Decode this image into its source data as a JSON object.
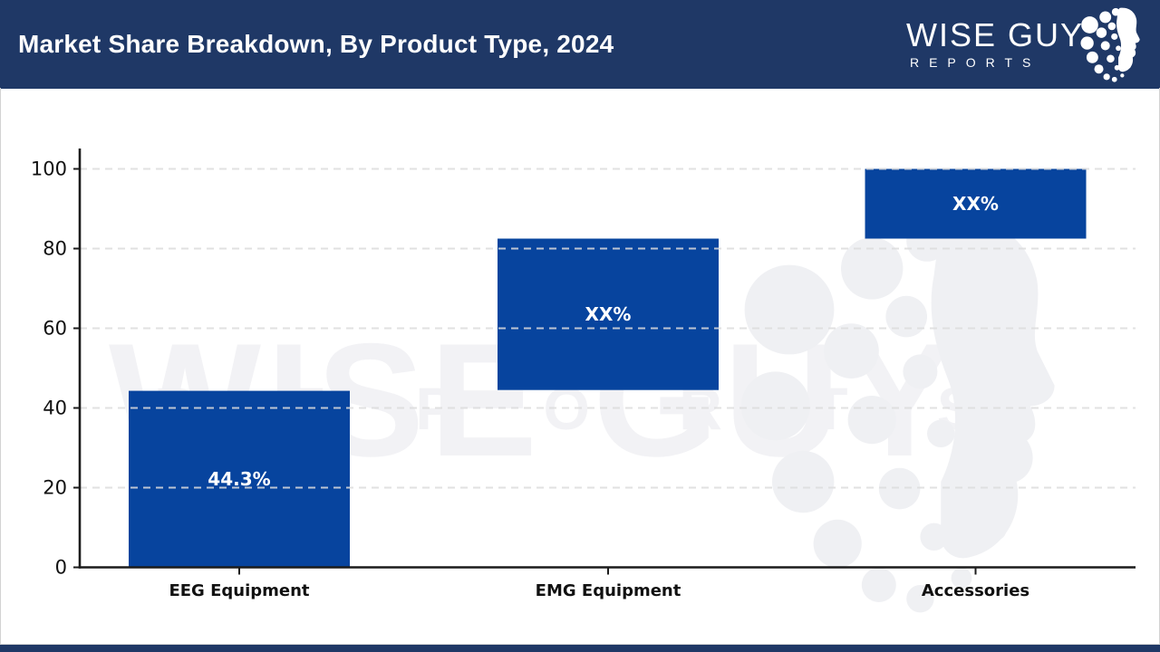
{
  "header": {
    "title": "Market Share Breakdown, By Product Type, 2024",
    "brand": {
      "name": "WISE GUY",
      "sub": "REPORTS"
    }
  },
  "watermark": {
    "line1": "WISE GUY",
    "line2": "R E P O R T S"
  },
  "colors": {
    "header_bg": "#1f3866",
    "footer_bg": "#1f3866",
    "bar": "#07449e",
    "bar_label": "#ffffff",
    "axis": "#1c1c1c",
    "grid": "#dcdcdc",
    "tick_label": "#111111",
    "watermark": "#f2f2f5"
  },
  "chart_data": {
    "type": "bar",
    "subtype": "waterfall",
    "title": "Market Share Breakdown, By Product Type, 2024",
    "categories": [
      "EEG Equipment",
      "EMG Equipment",
      "Accessories"
    ],
    "bars": [
      {
        "category": "EEG Equipment",
        "label": "44.3%",
        "start": 0,
        "end": 44.3
      },
      {
        "category": "EMG Equipment",
        "label": "XX%",
        "start": 44.5,
        "end": 82.5
      },
      {
        "category": "Accessories",
        "label": "XX%",
        "start": 82.5,
        "end": 100
      }
    ],
    "yticks": [
      0,
      20,
      40,
      60,
      80,
      100
    ],
    "ylim": [
      0,
      105
    ],
    "xlabel": "",
    "ylabel": "",
    "unit": "%",
    "grid": "horizontal-dashed",
    "legend": "none"
  }
}
